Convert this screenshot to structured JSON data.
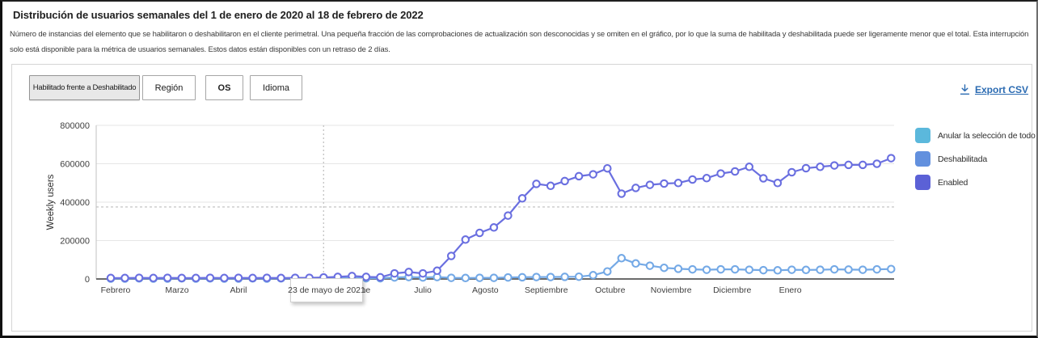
{
  "page": {
    "title": "Distribución de usuarios semanales del 1 de enero de 2020 al 18 de febrero de 2022",
    "description": "Número de instancias del elemento que se habilitaron o deshabilitaron en el cliente perimetral. Una pequeña fracción de las comprobaciones de actualización son desconocidas y se omiten en el gráfico, por lo que la suma de habilitada y deshabilitada puede ser ligeramente menor que el total. Esta interrupción solo está disponible para la métrica de usuarios semanales. Estos datos están disponibles con un retraso de 2 días."
  },
  "toolbar": {
    "buttons": [
      {
        "label": "Habilitado frente a Deshabilitado",
        "selected": true
      },
      {
        "label": "Región",
        "selected": false
      },
      {
        "label": "OS",
        "selected": false
      },
      {
        "label": "Idioma",
        "selected": false
      }
    ],
    "export_label": "Export CSV"
  },
  "legend": {
    "items": [
      {
        "label": "Anular la selección de todo",
        "color": "#5bb8dc"
      },
      {
        "label": "Deshabilitada",
        "color": "#6290de"
      },
      {
        "label": "Enabled",
        "color": "#5b61d6"
      }
    ]
  },
  "tooltip": {
    "text": "23 de mayo de 2021"
  },
  "chart_data": {
    "type": "line",
    "ylabel": "Weekly users",
    "ylim": [
      0,
      800000
    ],
    "y_ticks": [
      {
        "label": "0",
        "value": 0
      },
      {
        "label": "200000",
        "value": 200000
      },
      {
        "label": "400000",
        "value": 400000
      },
      {
        "label": "600000",
        "value": 600000
      },
      {
        "label": "800000",
        "value": 800000
      }
    ],
    "x_tick_labels": [
      {
        "label": "Febrero",
        "week": 0.34
      },
      {
        "label": "Marzo",
        "week": 4.67
      },
      {
        "label": "Abril",
        "week": 9.0
      },
      {
        "label": "June",
        "week": 17.66
      },
      {
        "label": "Julio",
        "week": 22.0
      },
      {
        "label": "Agosto",
        "week": 26.4
      },
      {
        "label": "Septiembre",
        "week": 30.7
      },
      {
        "label": "Octubre",
        "week": 35.2
      },
      {
        "label": "Noviembre",
        "week": 39.5
      },
      {
        "label": "Diciembre",
        "week": 43.8
      },
      {
        "label": "Enero",
        "week": 47.9
      }
    ],
    "weeks_count": 56,
    "grid": true,
    "legend_position": "right",
    "series": [
      {
        "name": "Deshabilitada",
        "line_color": "#74a9e6",
        "values": [
          2000,
          2000,
          3000,
          2000,
          2000,
          3000,
          2000,
          3000,
          2000,
          2000,
          3000,
          2000,
          3000,
          2000,
          3000,
          3000,
          4000,
          5000,
          4000,
          4000,
          8000,
          10000,
          8000,
          10000,
          6000,
          5000,
          6000,
          6000,
          8000,
          9000,
          10000,
          10000,
          11000,
          12000,
          20000,
          39000,
          108000,
          81000,
          69000,
          58000,
          53000,
          50000,
          48000,
          50000,
          50000,
          48000,
          46000,
          45000,
          48000,
          47000,
          48000,
          50000,
          49000,
          48000,
          50000,
          52000
        ]
      },
      {
        "name": "Enabled",
        "line_color": "#6a6fe0",
        "values": [
          5000,
          5000,
          6000,
          5000,
          6000,
          5000,
          5000,
          6000,
          5000,
          6000,
          5000,
          6000,
          5000,
          6000,
          6000,
          8000,
          11000,
          15000,
          11000,
          9000,
          29000,
          36000,
          29000,
          43000,
          120000,
          205000,
          240000,
          268000,
          330000,
          420000,
          495000,
          485000,
          510000,
          535000,
          545000,
          576000,
          444000,
          474000,
          490000,
          497000,
          500000,
          518000,
          525000,
          549000,
          560000,
          584000,
          524000,
          500000,
          556000,
          577000,
          584000,
          591000,
          594000,
          594000,
          600000,
          629000
        ]
      }
    ],
    "crosshair": {
      "week": 15,
      "value": 375000,
      "date_label": "23 de mayo de 2021"
    }
  }
}
